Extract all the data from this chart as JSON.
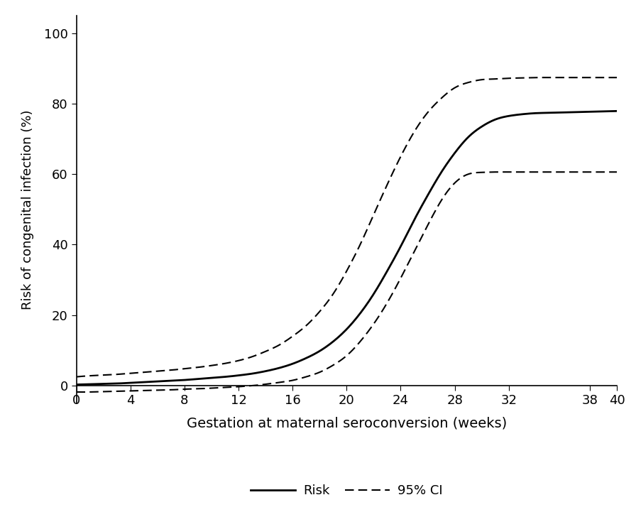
{
  "xlabel": "Gestation at maternal seroconversion (weeks)",
  "ylabel": "Risk of congenital infection (%)",
  "xlim": [
    0,
    40
  ],
  "ylim": [
    -5,
    105
  ],
  "yticks": [
    0,
    20,
    40,
    60,
    80,
    100
  ],
  "xticks": [
    0,
    4,
    8,
    12,
    16,
    20,
    24,
    28,
    32,
    38,
    40
  ],
  "legend_labels": [
    "Risk",
    "95% CI"
  ],
  "line_color": "#000000",
  "background_color": "#ffffff",
  "figsize": [
    8.96,
    7.28
  ],
  "dpi": 100,
  "xlabel_fontsize": 14,
  "ylabel_fontsize": 13,
  "tick_fontsize": 13,
  "legend_fontsize": 13,
  "x_weeks": [
    0,
    1,
    2,
    3,
    4,
    5,
    6,
    7,
    8,
    9,
    10,
    11,
    12,
    13,
    14,
    15,
    16,
    17,
    18,
    19,
    20,
    21,
    22,
    23,
    24,
    25,
    26,
    27,
    28,
    29,
    30,
    31,
    32,
    33,
    34,
    35,
    36,
    37,
    38,
    39,
    40
  ],
  "risk": [
    0.3,
    0.4,
    0.5,
    0.6,
    0.8,
    1.0,
    1.2,
    1.4,
    1.6,
    1.9,
    2.2,
    2.5,
    2.9,
    3.4,
    4.1,
    5.0,
    6.2,
    7.8,
    9.8,
    12.5,
    16.0,
    20.5,
    26.0,
    32.5,
    39.5,
    47.0,
    54.0,
    60.5,
    66.0,
    70.5,
    73.5,
    75.5,
    76.5,
    77.0,
    77.3,
    77.4,
    77.5,
    77.6,
    77.7,
    77.8,
    77.9
  ],
  "ci_upper": [
    2.5,
    2.8,
    3.0,
    3.2,
    3.5,
    3.8,
    4.1,
    4.4,
    4.8,
    5.2,
    5.7,
    6.3,
    7.1,
    8.2,
    9.7,
    11.5,
    14.0,
    17.0,
    21.0,
    26.0,
    32.5,
    40.0,
    48.5,
    57.0,
    65.0,
    72.0,
    77.5,
    81.5,
    84.5,
    86.0,
    86.8,
    87.0,
    87.2,
    87.3,
    87.4,
    87.4,
    87.4,
    87.4,
    87.4,
    87.4,
    87.4
  ],
  "ci_lower": [
    -1.8,
    -1.8,
    -1.7,
    -1.6,
    -1.5,
    -1.4,
    -1.3,
    -1.2,
    -1.0,
    -0.9,
    -0.7,
    -0.5,
    -0.3,
    0.0,
    0.4,
    0.9,
    1.5,
    2.5,
    3.8,
    5.8,
    8.5,
    12.5,
    17.5,
    23.5,
    30.5,
    38.0,
    45.5,
    52.5,
    57.5,
    60.0,
    60.5,
    60.6,
    60.6,
    60.6,
    60.6,
    60.6,
    60.6,
    60.6,
    60.6,
    60.6,
    60.6
  ]
}
